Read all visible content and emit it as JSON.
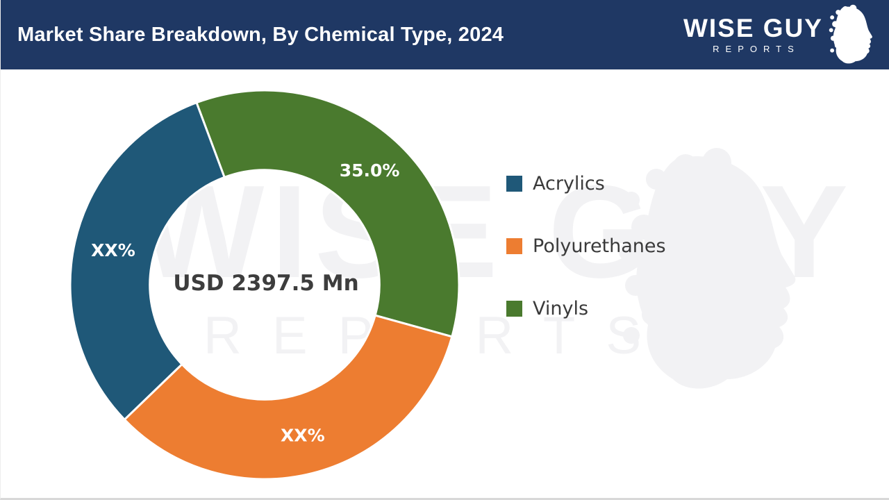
{
  "header": {
    "title": "Market Share Breakdown, By Chemical Type, 2024",
    "logo": {
      "line1": "WISE GUY",
      "line2": "REPORTS"
    }
  },
  "watermark": {
    "line1": "WISE GUY",
    "line2": "REPORTS"
  },
  "chart_data": {
    "type": "pie",
    "subtype": "donut",
    "title": "Market Share Breakdown, By Chemical Type, 2024",
    "center_label": "USD 2397.5 Mn",
    "start_angle_deg": 110.5,
    "direction": "clockwise",
    "inner_radius_ratio": 0.59,
    "slices": [
      {
        "name": "Vinyls",
        "label": "35.0%",
        "value_pct": 35.0,
        "color": "#4A7A2E"
      },
      {
        "name": "Polyurethanes",
        "label": "XX%",
        "value_pct": 33.5,
        "color": "#ED7D31"
      },
      {
        "name": "Acrylics",
        "label": "XX%",
        "value_pct": 31.5,
        "color": "#1F5878"
      }
    ],
    "legend_position": "right",
    "notes": "Acrylics and Polyurethanes percentages are masked as XX% in the source image; 33.5 and 31.5 are estimated from arc angles."
  },
  "legend": {
    "items": [
      {
        "label": "Acrylics",
        "color": "#1F5878"
      },
      {
        "label": "Polyurethanes",
        "color": "#ED7D31"
      },
      {
        "label": "Vinyls",
        "color": "#4A7A2E"
      }
    ]
  },
  "colors": {
    "header_bg": "#1F3864",
    "watermark": "#f2f2f4",
    "center_text": "#3d3d3d",
    "slice_label_text": "#ffffff"
  }
}
